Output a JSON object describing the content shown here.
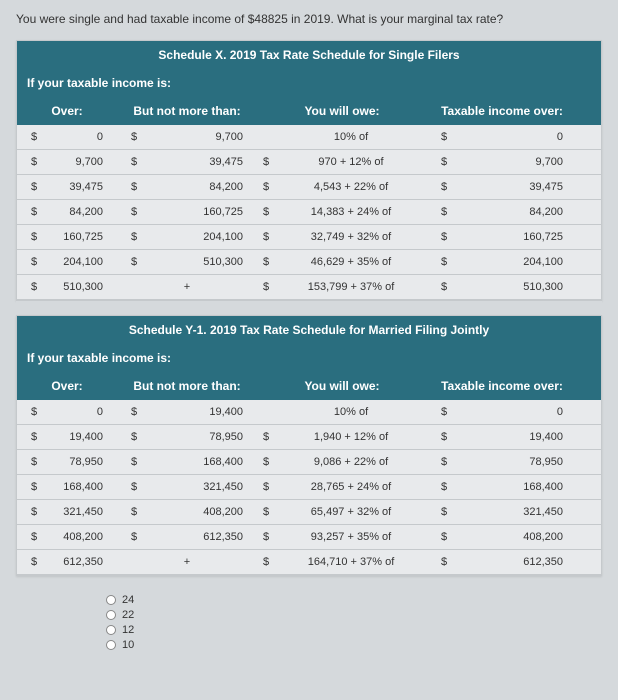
{
  "question": "You were single and had taxable income of $48825 in 2019. What is your marginal tax rate?",
  "scheduleX": {
    "title": "Schedule X. 2019 Tax Rate Schedule for Single Filers",
    "ifLabel": "If your taxable income is:",
    "headers": {
      "over": "Over:",
      "notMore": "But not more than:",
      "owe": "You will owe:",
      "taxOver": "Taxable income over:"
    },
    "rows": [
      {
        "over": "0",
        "notMore": "9,700",
        "oweSym": "",
        "owe": "10% of",
        "taxOver": "0"
      },
      {
        "over": "9,700",
        "notMore": "39,475",
        "oweSym": "$",
        "owe": "970 + 12% of",
        "taxOver": "9,700"
      },
      {
        "over": "39,475",
        "notMore": "84,200",
        "oweSym": "$",
        "owe": "4,543 + 22% of",
        "taxOver": "39,475"
      },
      {
        "over": "84,200",
        "notMore": "160,725",
        "oweSym": "$",
        "owe": "14,383 + 24% of",
        "taxOver": "84,200"
      },
      {
        "over": "160,725",
        "notMore": "204,100",
        "oweSym": "$",
        "owe": "32,749 + 32% of",
        "taxOver": "160,725"
      },
      {
        "over": "204,100",
        "notMore": "510,300",
        "oweSym": "$",
        "owe": "46,629 + 35% of",
        "taxOver": "204,100"
      },
      {
        "over": "510,300",
        "notMore": "+",
        "oweSym": "$",
        "owe": "153,799 + 37% of",
        "taxOver": "510,300",
        "notMoreIsPlus": true
      }
    ]
  },
  "scheduleY": {
    "title": "Schedule Y-1. 2019 Tax Rate Schedule for Married Filing Jointly",
    "ifLabel": "If your taxable income is:",
    "headers": {
      "over": "Over:",
      "notMore": "But not more than:",
      "owe": "You will owe:",
      "taxOver": "Taxable income over:"
    },
    "rows": [
      {
        "over": "0",
        "notMore": "19,400",
        "oweSym": "",
        "owe": "10% of",
        "taxOver": "0"
      },
      {
        "over": "19,400",
        "notMore": "78,950",
        "oweSym": "$",
        "owe": "1,940 + 12% of",
        "taxOver": "19,400"
      },
      {
        "over": "78,950",
        "notMore": "168,400",
        "oweSym": "$",
        "owe": "9,086 + 22% of",
        "taxOver": "78,950"
      },
      {
        "over": "168,400",
        "notMore": "321,450",
        "oweSym": "$",
        "owe": "28,765 + 24% of",
        "taxOver": "168,400"
      },
      {
        "over": "321,450",
        "notMore": "408,200",
        "oweSym": "$",
        "owe": "65,497 + 32% of",
        "taxOver": "321,450"
      },
      {
        "over": "408,200",
        "notMore": "612,350",
        "oweSym": "$",
        "owe": "93,257 + 35% of",
        "taxOver": "408,200"
      },
      {
        "over": "612,350",
        "notMore": "+",
        "oweSym": "$",
        "owe": "164,710 + 37% of",
        "taxOver": "612,350",
        "notMoreIsPlus": true
      }
    ]
  },
  "answers": [
    "24",
    "22",
    "12",
    "10"
  ],
  "colors": {
    "headerBg": "#2a6e7f",
    "headerText": "#ffffff",
    "pageBg": "#d5d9dc",
    "cardBg": "#e8eaec",
    "border": "#c5c9cc",
    "text": "#333333"
  }
}
